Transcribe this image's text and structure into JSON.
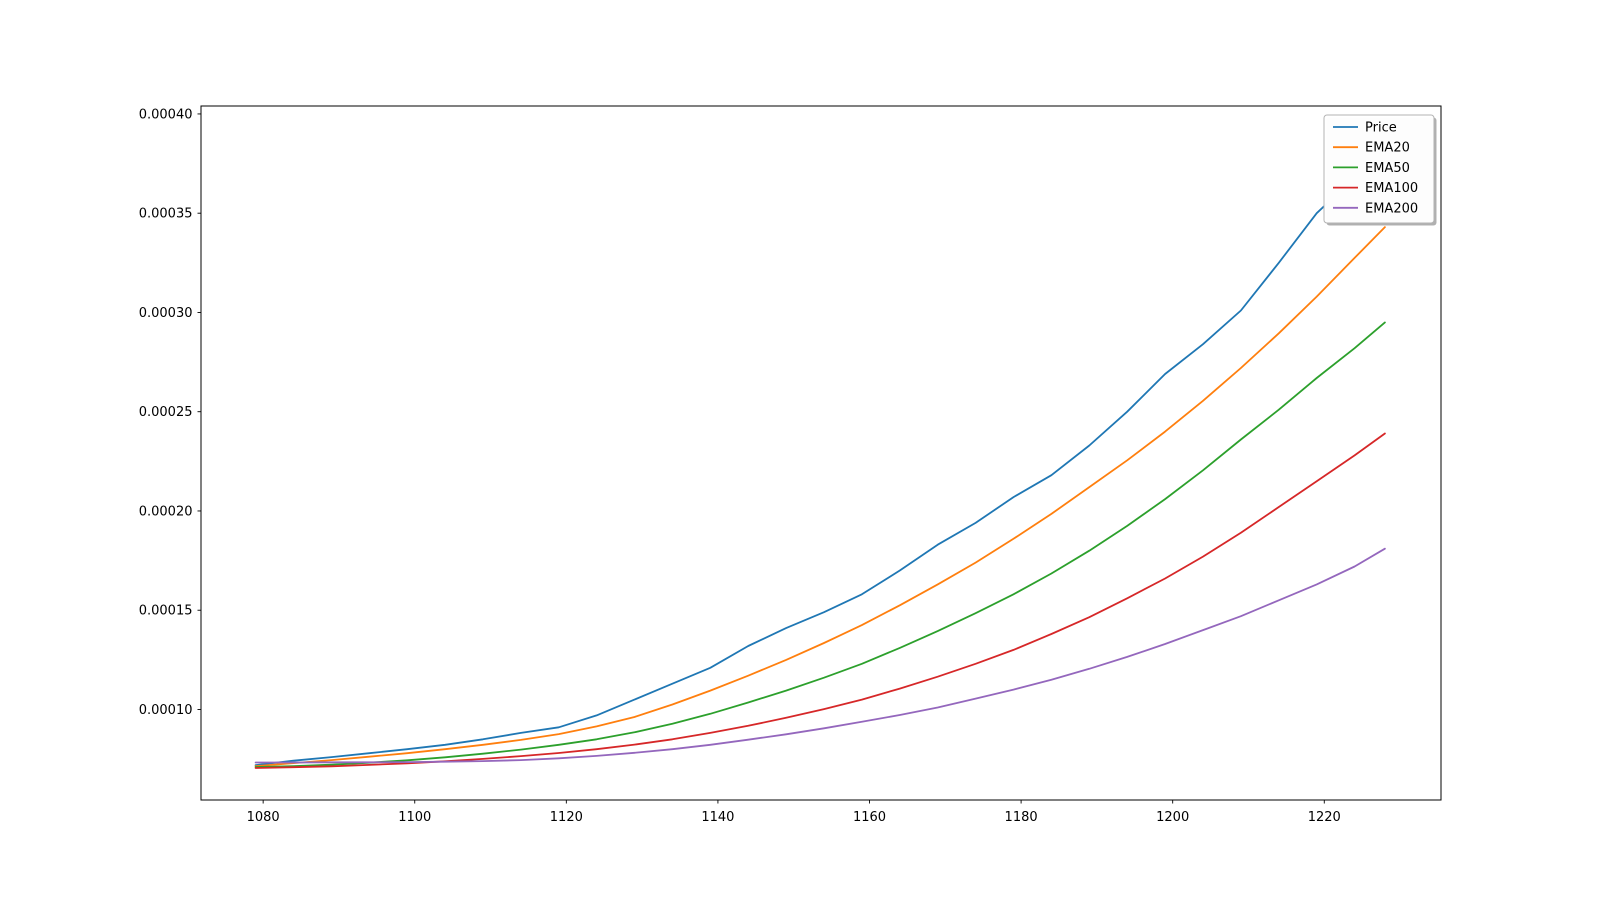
{
  "figure": {
    "background": "#ffffff",
    "spine_color": "#000000",
    "tick_color": "#000000",
    "tick_label_color": "#000000",
    "legend": {
      "position": "upper-right",
      "shadow": true,
      "border_color": "#b3b3b3",
      "background": "#ffffff",
      "shadow_color": "#b0b0b0"
    }
  },
  "chart_data": {
    "type": "line",
    "title": "",
    "xlabel": "",
    "ylabel": "",
    "grid": false,
    "xlim": [
      1071.8,
      1235.4
    ],
    "ylim": [
      5.44e-05,
      0.000404
    ],
    "x_ticks": [
      1080,
      1100,
      1120,
      1140,
      1160,
      1180,
      1200,
      1220
    ],
    "y_ticks": [
      0.0001,
      0.00015,
      0.0002,
      0.00025,
      0.0003,
      0.00035,
      0.0004
    ],
    "y_tick_labels": [
      "0.00010",
      "0.00015",
      "0.00020",
      "0.00025",
      "0.00030",
      "0.00035",
      "0.00040"
    ],
    "legend_entries": [
      "Price",
      "EMA20",
      "EMA50",
      "EMA100",
      "EMA200"
    ],
    "x": [
      1079,
      1084,
      1089,
      1094,
      1099,
      1104,
      1109,
      1114,
      1119,
      1124,
      1129,
      1134,
      1139,
      1144,
      1149,
      1154,
      1159,
      1164,
      1169,
      1174,
      1179,
      1184,
      1189,
      1194,
      1199,
      1204,
      1209,
      1214,
      1219,
      1224,
      1228
    ],
    "series": [
      {
        "name": "Price",
        "color": "#1f77b4",
        "values": [
          7.2e-05,
          7.42e-05,
          7.6e-05,
          7.8e-05,
          8e-05,
          8.22e-05,
          8.5e-05,
          8.82e-05,
          9.1e-05,
          9.7e-05,
          0.000105,
          0.000113,
          0.000121,
          0.000132,
          0.000141,
          0.000149,
          0.000158,
          0.00017,
          0.000183,
          0.000194,
          0.000207,
          0.000218,
          0.000233,
          0.00025,
          0.000269,
          0.000284,
          0.000301,
          0.000325,
          0.00035,
          0.000368,
          0.000388
        ]
      },
      {
        "name": "EMA20",
        "color": "#ff7f0e",
        "values": [
          7.15e-05,
          7.3e-05,
          7.45e-05,
          7.62e-05,
          7.8e-05,
          8e-05,
          8.22e-05,
          8.47e-05,
          8.76e-05,
          9.15e-05,
          9.62e-05,
          0.0001025,
          0.0001095,
          0.000117,
          0.000125,
          0.0001335,
          0.0001425,
          0.0001525,
          0.000163,
          0.000174,
          0.000186,
          0.0001985,
          0.000212,
          0.0002255,
          0.00024,
          0.0002555,
          0.000272,
          0.0002895,
          0.000308,
          0.0003275,
          0.000343
        ]
      },
      {
        "name": "EMA50",
        "color": "#2ca02c",
        "values": [
          7.1e-05,
          7.15e-05,
          7.22e-05,
          7.32e-05,
          7.44e-05,
          7.59e-05,
          7.77e-05,
          7.98e-05,
          8.22e-05,
          8.5e-05,
          8.85e-05,
          9.28e-05,
          9.78e-05,
          0.0001035,
          0.0001095,
          0.000116,
          0.000123,
          0.000131,
          0.0001395,
          0.0001485,
          0.000158,
          0.0001685,
          0.00018,
          0.0001925,
          0.000206,
          0.0002205,
          0.000236,
          0.000251,
          0.000267,
          0.000282,
          0.000295
        ]
      },
      {
        "name": "EMA100",
        "color": "#d62728",
        "values": [
          7.05e-05,
          7.09e-05,
          7.14e-05,
          7.21e-05,
          7.29e-05,
          7.39e-05,
          7.51e-05,
          7.65e-05,
          7.81e-05,
          8e-05,
          8.23e-05,
          8.5e-05,
          8.82e-05,
          9.18e-05,
          9.58e-05,
          0.0001002,
          0.000105,
          0.0001105,
          0.0001165,
          0.000123,
          0.00013,
          0.000138,
          0.0001465,
          0.000156,
          0.000166,
          0.000177,
          0.000189,
          0.000202,
          0.000215,
          0.000228,
          0.000239
        ]
      },
      {
        "name": "EMA200",
        "color": "#9467bd",
        "values": [
          7.33e-05,
          7.33e-05,
          7.34e-05,
          7.34e-05,
          7.35e-05,
          7.37e-05,
          7.4e-05,
          7.45e-05,
          7.54e-05,
          7.66e-05,
          7.82e-05,
          8e-05,
          8.22e-05,
          8.48e-05,
          8.75e-05,
          9.05e-05,
          9.38e-05,
          9.72e-05,
          0.000101,
          0.0001055,
          0.00011,
          0.000115,
          0.0001205,
          0.0001265,
          0.000133,
          0.00014,
          0.000147,
          0.000155,
          0.000163,
          0.000172,
          0.000181
        ]
      }
    ]
  }
}
